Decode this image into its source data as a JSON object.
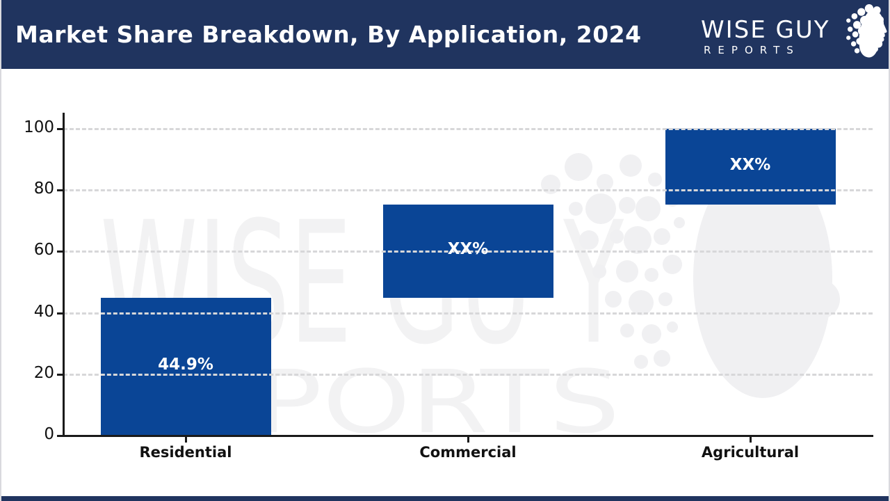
{
  "header": {
    "title": "Market Share Breakdown, By Application, 2024",
    "logo": {
      "line1": "WISE GUY",
      "line2": "REPORTS"
    }
  },
  "watermark": {
    "line1": "WISE GU Y",
    "line2": "REPORTS"
  },
  "colors": {
    "banner": "#20345f",
    "bar": "#0a4596",
    "grid": "#d7d7d9",
    "axis": "#1a1a1a",
    "bar_label_text": "#ffffff",
    "watermark": "#f2f2f3"
  },
  "chart_data": {
    "type": "bar",
    "subtype": "waterfall-style floating bars",
    "title": "Market Share Breakdown, By Application, 2024",
    "categories": [
      "Residential",
      "Commercial",
      "Agricultural"
    ],
    "segments": [
      {
        "category": "Residential",
        "start": 0,
        "end": 44.9,
        "label": "44.9%"
      },
      {
        "category": "Commercial",
        "start": 44.9,
        "end": 75.2,
        "label": "XX%"
      },
      {
        "category": "Agricultural",
        "start": 75.2,
        "end": 100,
        "label": "XX%"
      }
    ],
    "xlabel": "",
    "ylabel": "",
    "ylim": [
      0,
      100
    ],
    "yticks": [
      0,
      20,
      40,
      60,
      80,
      100
    ],
    "grid": "horizontal dashed, drawn above bars",
    "legend": "none",
    "bar_color": "#0a4596"
  }
}
